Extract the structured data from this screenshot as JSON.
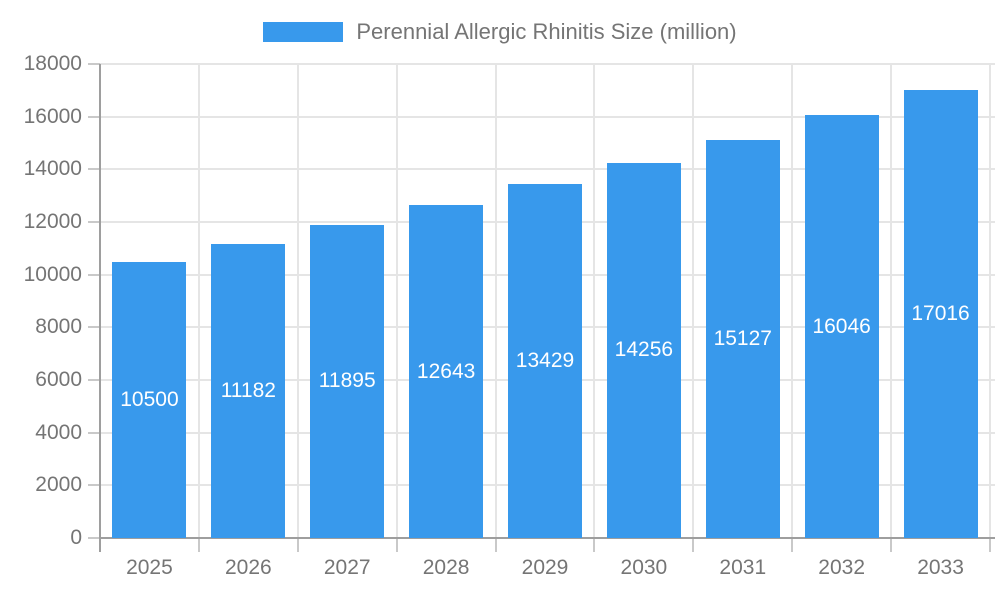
{
  "legend": {
    "label": "Perennial Allergic Rhinitis Size (million)"
  },
  "colors": {
    "bar": "#3899EC",
    "grid": "#E5E5E5",
    "axis": "#9E9E9E",
    "tick": "#C9C9C9",
    "text": "#757575",
    "bar_label": "#FFFFFF",
    "background": "#FFFFFF"
  },
  "chart_data": {
    "type": "bar",
    "title": "Perennial Allergic Rhinitis Size (million)",
    "categories": [
      "2025",
      "2026",
      "2027",
      "2028",
      "2029",
      "2030",
      "2031",
      "2032",
      "2033"
    ],
    "values": [
      10500,
      11182,
      11895,
      12643,
      13429,
      14256,
      15127,
      16046,
      17016
    ],
    "series": [
      {
        "name": "Perennial Allergic Rhinitis Size (million)",
        "values": [
          10500,
          11182,
          11895,
          12643,
          13429,
          14256,
          15127,
          16046,
          17016
        ]
      }
    ],
    "xlabel": "",
    "ylabel": "",
    "ylim": [
      0,
      18000
    ],
    "ytick_step": 2000,
    "yticks": [
      0,
      2000,
      4000,
      6000,
      8000,
      10000,
      12000,
      14000,
      16000,
      18000
    ],
    "grid": true,
    "value_labels": "inside-center",
    "legend_position": "top-center"
  }
}
